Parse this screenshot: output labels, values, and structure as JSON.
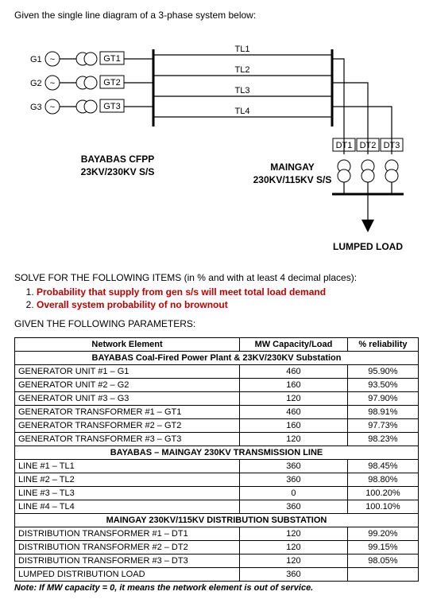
{
  "intro": "Given the single line diagram of a 3-phase system below:",
  "diagram": {
    "generators": [
      {
        "label": "G1",
        "xformer": "GT1"
      },
      {
        "label": "G2",
        "xformer": "GT2"
      },
      {
        "label": "G3",
        "xformer": "GT3"
      }
    ],
    "tlines": [
      "TL1",
      "TL2",
      "TL3",
      "TL4"
    ],
    "left_station": {
      "line1": "BAYABAS CFPP",
      "line2": "23KV/230KV S/S"
    },
    "right_station": {
      "line1": "MAINGAY",
      "line2": "230KV/115KV S/S"
    },
    "dts": [
      "DT1",
      "DT2",
      "DT3"
    ],
    "load_label": "LUMPED LOAD"
  },
  "solve": {
    "heading": "SOLVE FOR THE FOLLOWING ITEMS (in % and with at least 4 decimal places):",
    "items": [
      "Probability that supply from gen s/s will meet total load demand",
      "Overall system probability of no brownout"
    ]
  },
  "given_line": "GIVEN THE FOLLOWING PARAMETERS:",
  "table": {
    "headers": {
      "c1": "Network Element",
      "c2": "MW Capacity/Load",
      "c3": "% reliability"
    },
    "section1": {
      "title": "BAYABAS Coal-Fired Power Plant & 23KV/230KV Substation",
      "rows": [
        {
          "n": "GENERATOR UNIT #1 – G1",
          "mw": "460",
          "rel": "95.90%"
        },
        {
          "n": "GENERATOR UNIT #2 – G2",
          "mw": "160",
          "rel": "93.50%"
        },
        {
          "n": "GENERATOR UNIT #3 – G3",
          "mw": "120",
          "rel": "97.90%"
        },
        {
          "n": "GENERATOR TRANSFORMER #1 – GT1",
          "mw": "460",
          "rel": "98.91%"
        },
        {
          "n": "GENERATOR TRANSFORMER #2 – GT2",
          "mw": "160",
          "rel": "97.73%"
        },
        {
          "n": "GENERATOR TRANSFORMER #3 – GT3",
          "mw": "120",
          "rel": "98.23%"
        }
      ]
    },
    "section2": {
      "title": "BAYABAS – MAINGAY 230KV TRANSMISSION LINE",
      "rows": [
        {
          "n": "LINE #1 – TL1",
          "mw": "360",
          "rel": "98.45%"
        },
        {
          "n": "LINE #2 – TL2",
          "mw": "360",
          "rel": "98.80%"
        },
        {
          "n": "LINE #3 – TL3",
          "mw": "0",
          "rel": "100.20%"
        },
        {
          "n": "LINE #4 – TL4",
          "mw": "360",
          "rel": "100.10%"
        }
      ]
    },
    "section3": {
      "title": "MAINGAY 230KV/115KV DISTRIBUTION SUBSTATION",
      "rows": [
        {
          "n": "DISTRIBUTION TRANSFORMER #1 – DT1",
          "mw": "120",
          "rel": "99.20%"
        },
        {
          "n": "DISTRIBUTION TRANSFORMER #2 – DT2",
          "mw": "120",
          "rel": "99.15%"
        },
        {
          "n": "DISTRIBUTION TRANSFORMER #3 – DT3",
          "mw": "120",
          "rel": "98.05%"
        },
        {
          "n": "LUMPED DISTRIBUTION LOAD",
          "mw": "360",
          "rel": ""
        }
      ]
    }
  },
  "footnote": "Note: If MW capacity = 0, it means the network element is out of service."
}
